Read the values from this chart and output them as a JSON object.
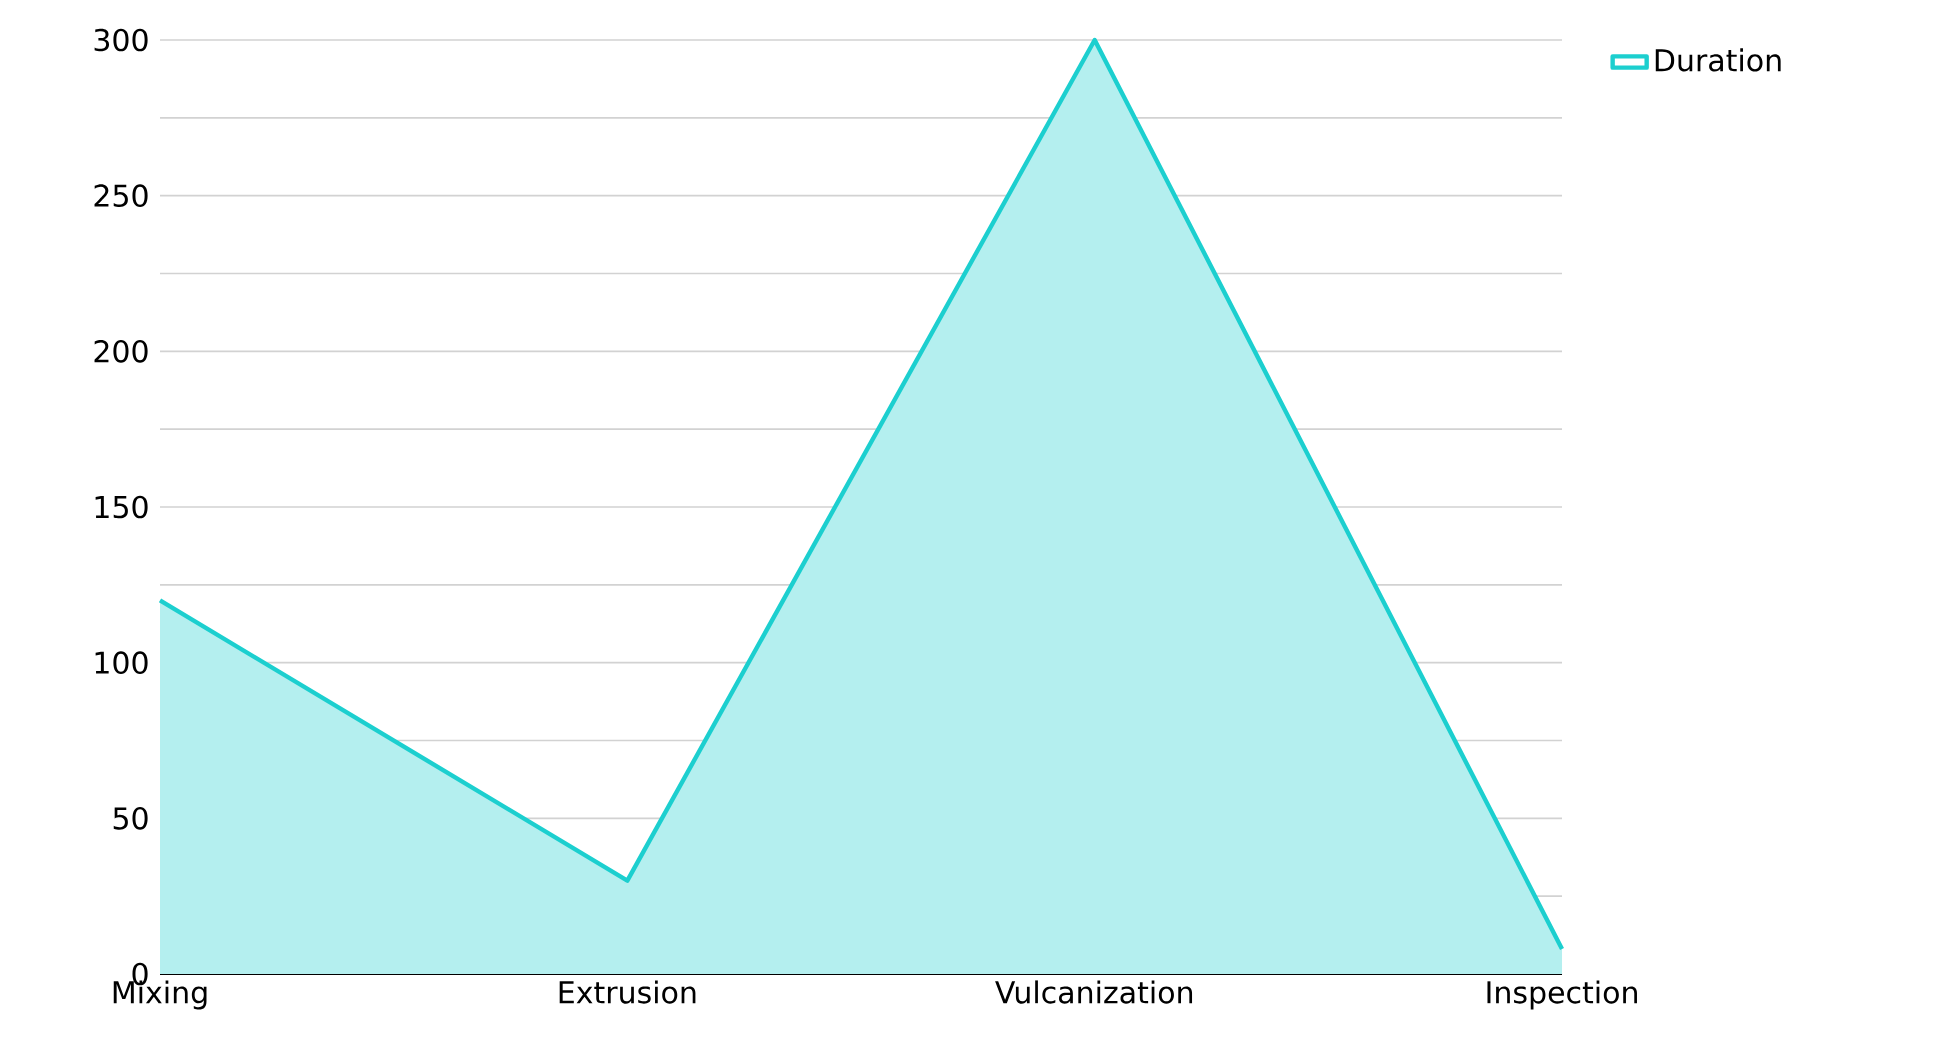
{
  "chart_data": {
    "type": "area",
    "categories": [
      "Mixing",
      "Extrusion",
      "Vulcanization",
      "Inspection"
    ],
    "series": [
      {
        "name": "Duration",
        "color": "#1ccfcf",
        "values": [
          120,
          30,
          300,
          8
        ]
      }
    ],
    "ylim": [
      0,
      300
    ],
    "yticks": [
      0,
      {
        "value": 25,
        "label": null
      },
      50,
      {
        "value": 75,
        "label": null
      },
      100,
      {
        "value": 125,
        "label": null
      },
      150,
      {
        "value": 175,
        "label": null
      },
      200,
      {
        "value": 225,
        "label": null
      },
      250,
      {
        "value": 275,
        "label": null
      },
      300
    ],
    "grid": "y",
    "legend": "top right",
    "marker": "none",
    "line_style": "solid"
  }
}
